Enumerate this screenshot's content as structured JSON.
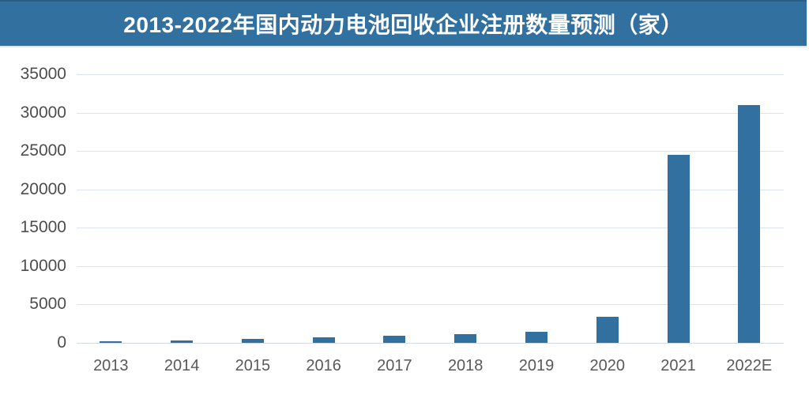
{
  "banner": {
    "title": "2013-2022年国内动力电池回收企业注册数量预测（家）"
  },
  "colors": {
    "banner_bg": "#32709F",
    "banner_text": "#FFFFFF",
    "banner_top_border": "#2D5E83",
    "bar": "#32709F",
    "gridline": "#DBE4F0",
    "axis_label": "#595959"
  },
  "chart_data": {
    "type": "bar",
    "title": "2013-2022年国内动力电池回收企业注册数量预测（家）",
    "categories": [
      "2013",
      "2014",
      "2015",
      "2016",
      "2017",
      "2018",
      "2019",
      "2020",
      "2021",
      "2022E"
    ],
    "values": [
      200,
      350,
      480,
      680,
      930,
      1100,
      1400,
      3400,
      24500,
      31000
    ],
    "xlabel": "",
    "ylabel": "",
    "ylim": [
      0,
      35000
    ],
    "yticks": [
      0,
      5000,
      10000,
      15000,
      20000,
      25000,
      30000,
      35000
    ],
    "grid": true,
    "legend": false,
    "bar_color": "#32709F"
  }
}
